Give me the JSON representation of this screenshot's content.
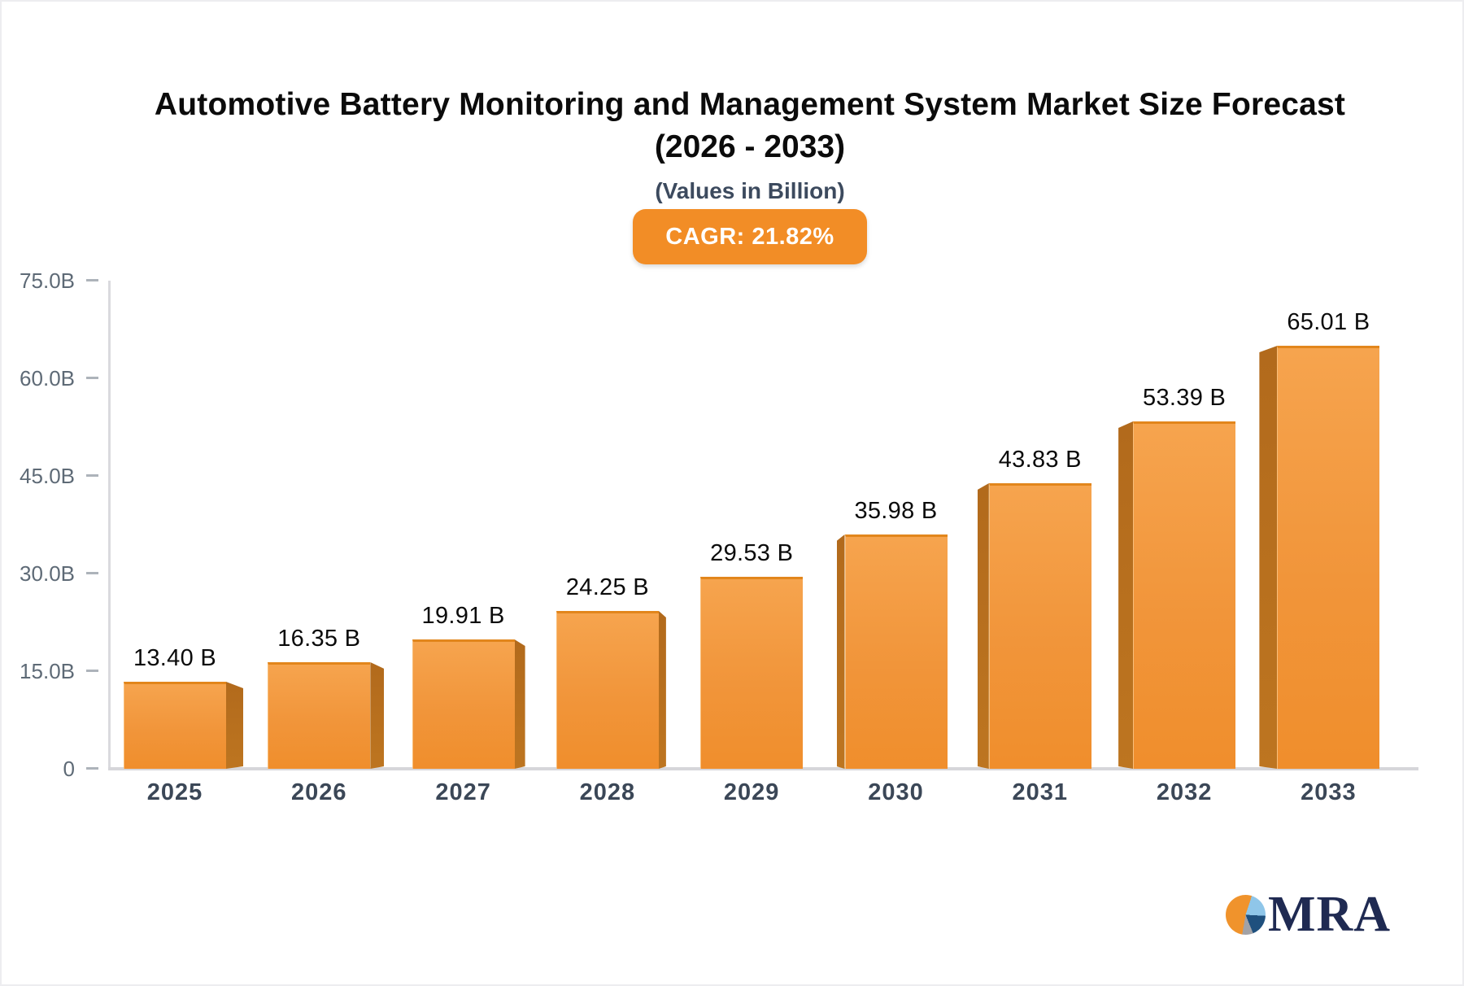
{
  "header": {
    "title_line1": "Automotive Battery Monitoring and Management System Market Size Forecast",
    "title_line2": "(2026 - 2033)",
    "subtitle": "(Values in Billion)",
    "cagr_badge": "CAGR: 21.82%"
  },
  "chart_data": {
    "type": "bar",
    "title": "Automotive Battery Monitoring and Management System Market Size Forecast (2026 - 2033)",
    "subtitle": "(Values in Billion)",
    "cagr_percent": "21.82%",
    "unit": "Billion",
    "categories": [
      "2025",
      "2026",
      "2027",
      "2028",
      "2029",
      "2030",
      "2031",
      "2032",
      "2033"
    ],
    "values": [
      13.4,
      16.35,
      19.91,
      24.25,
      29.53,
      35.98,
      43.83,
      53.39,
      65.01
    ],
    "bar_labels": [
      "13.40 B",
      "16.35 B",
      "19.91 B",
      "24.25 B",
      "29.53 B",
      "35.98 B",
      "43.83 B",
      "53.39 B",
      "65.01 B"
    ],
    "xlabel": "",
    "ylabel": "",
    "ylim": [
      0,
      75
    ],
    "y_ticks": [
      {
        "value": 0,
        "label": "0"
      },
      {
        "value": 15,
        "label": "15.0B"
      },
      {
        "value": 30,
        "label": "30.0B"
      },
      {
        "value": 45,
        "label": "45.0B"
      },
      {
        "value": 60,
        "label": "60.0B"
      },
      {
        "value": 75,
        "label": "75.0B"
      }
    ],
    "grid": false,
    "legend": false,
    "bar_style": "3d",
    "colors": {
      "bar_face_top": "#f6a44e",
      "bar_face_bottom": "#f08e2c",
      "bar_top_edge": "#e2861c",
      "bar_side_face": "#b46c1c",
      "badge_background": "#f28d26",
      "badge_text": "#ffffff",
      "axis_line": "#dadade",
      "tick_label": "#5e6a76",
      "category_label": "#3b4757",
      "value_label": "#0b0b0b"
    }
  },
  "logo": {
    "text": "MRA",
    "pie_colors": [
      "#f0932c",
      "#8fc6e9",
      "#1f507e",
      "#a2a2a6"
    ]
  }
}
